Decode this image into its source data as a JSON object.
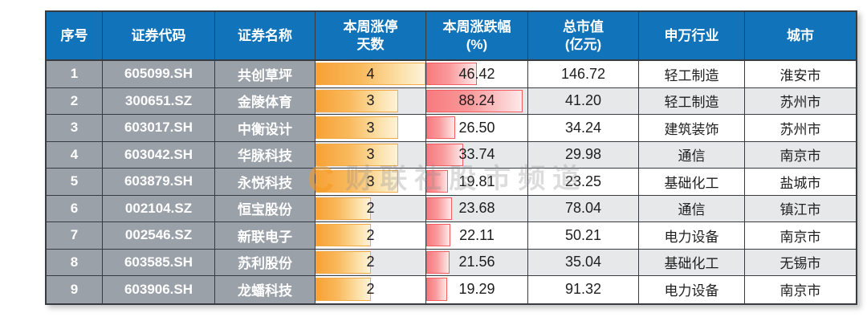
{
  "chart_data": {
    "type": "table",
    "title": "",
    "columns": [
      {
        "key": "index",
        "label": "序号"
      },
      {
        "key": "code",
        "label": "证券代码"
      },
      {
        "key": "name",
        "label": "证券名称"
      },
      {
        "key": "limit_days",
        "label": "本周涨停\n天数"
      },
      {
        "key": "change_pct",
        "label": "本周涨跌幅\n(%)"
      },
      {
        "key": "market_cap",
        "label": "总市值\n(亿元)"
      },
      {
        "key": "industry",
        "label": "申万行业"
      },
      {
        "key": "city",
        "label": "城市"
      }
    ],
    "rows": [
      {
        "index": "1",
        "code": "605099.SH",
        "name": "共创草坪",
        "limit_days": "4",
        "change_pct": "46.42",
        "market_cap": "146.72",
        "industry": "轻工制造",
        "city": "淮安市"
      },
      {
        "index": "2",
        "code": "300651.SZ",
        "name": "金陵体育",
        "limit_days": "3",
        "change_pct": "88.24",
        "market_cap": "41.20",
        "industry": "轻工制造",
        "city": "苏州市"
      },
      {
        "index": "3",
        "code": "603017.SH",
        "name": "中衡设计",
        "limit_days": "3",
        "change_pct": "26.50",
        "market_cap": "34.24",
        "industry": "建筑装饰",
        "city": "苏州市"
      },
      {
        "index": "4",
        "code": "603042.SH",
        "name": "华脉科技",
        "limit_days": "3",
        "change_pct": "33.74",
        "market_cap": "29.98",
        "industry": "通信",
        "city": "南京市"
      },
      {
        "index": "5",
        "code": "603879.SH",
        "name": "永悦科技",
        "limit_days": "3",
        "change_pct": "19.81",
        "market_cap": "23.25",
        "industry": "基础化工",
        "city": "盐城市"
      },
      {
        "index": "6",
        "code": "002104.SZ",
        "name": "恒宝股份",
        "limit_days": "2",
        "change_pct": "23.68",
        "market_cap": "78.04",
        "industry": "通信",
        "city": "镇江市"
      },
      {
        "index": "7",
        "code": "002546.SZ",
        "name": "新联电子",
        "limit_days": "2",
        "change_pct": "22.11",
        "market_cap": "50.21",
        "industry": "电力设备",
        "city": "南京市"
      },
      {
        "index": "8",
        "code": "603585.SH",
        "name": "苏利股份",
        "limit_days": "2",
        "change_pct": "21.56",
        "market_cap": "35.04",
        "industry": "基础化工",
        "city": "无锡市"
      },
      {
        "index": "9",
        "code": "603906.SH",
        "name": "龙蟠科技",
        "limit_days": "2",
        "change_pct": "19.29",
        "market_cap": "91.32",
        "industry": "电力设备",
        "city": "南京市"
      }
    ],
    "bars": {
      "limit_days": {
        "max": 4,
        "full_scale_pct": 100
      },
      "change_pct": {
        "max": 88.24,
        "full_scale_pct": 95
      }
    }
  },
  "watermark": {
    "logo": "C",
    "text": "财联社股市频道"
  },
  "colors": {
    "header_bg": "#1173b9",
    "header_text": "#ffffff",
    "id_cell_bg": "#9ba1a9",
    "row_bg": "#ffffff",
    "row_alt_bg": "#e7e8ea",
    "grid_line": "#383c41",
    "bar_orange": "#f7a136",
    "bar_orange_border": "#f3a945",
    "bar_red": "#f87a7d",
    "bar_red_border": "#f45d62",
    "watermark_logo_color": "#f59a23"
  }
}
